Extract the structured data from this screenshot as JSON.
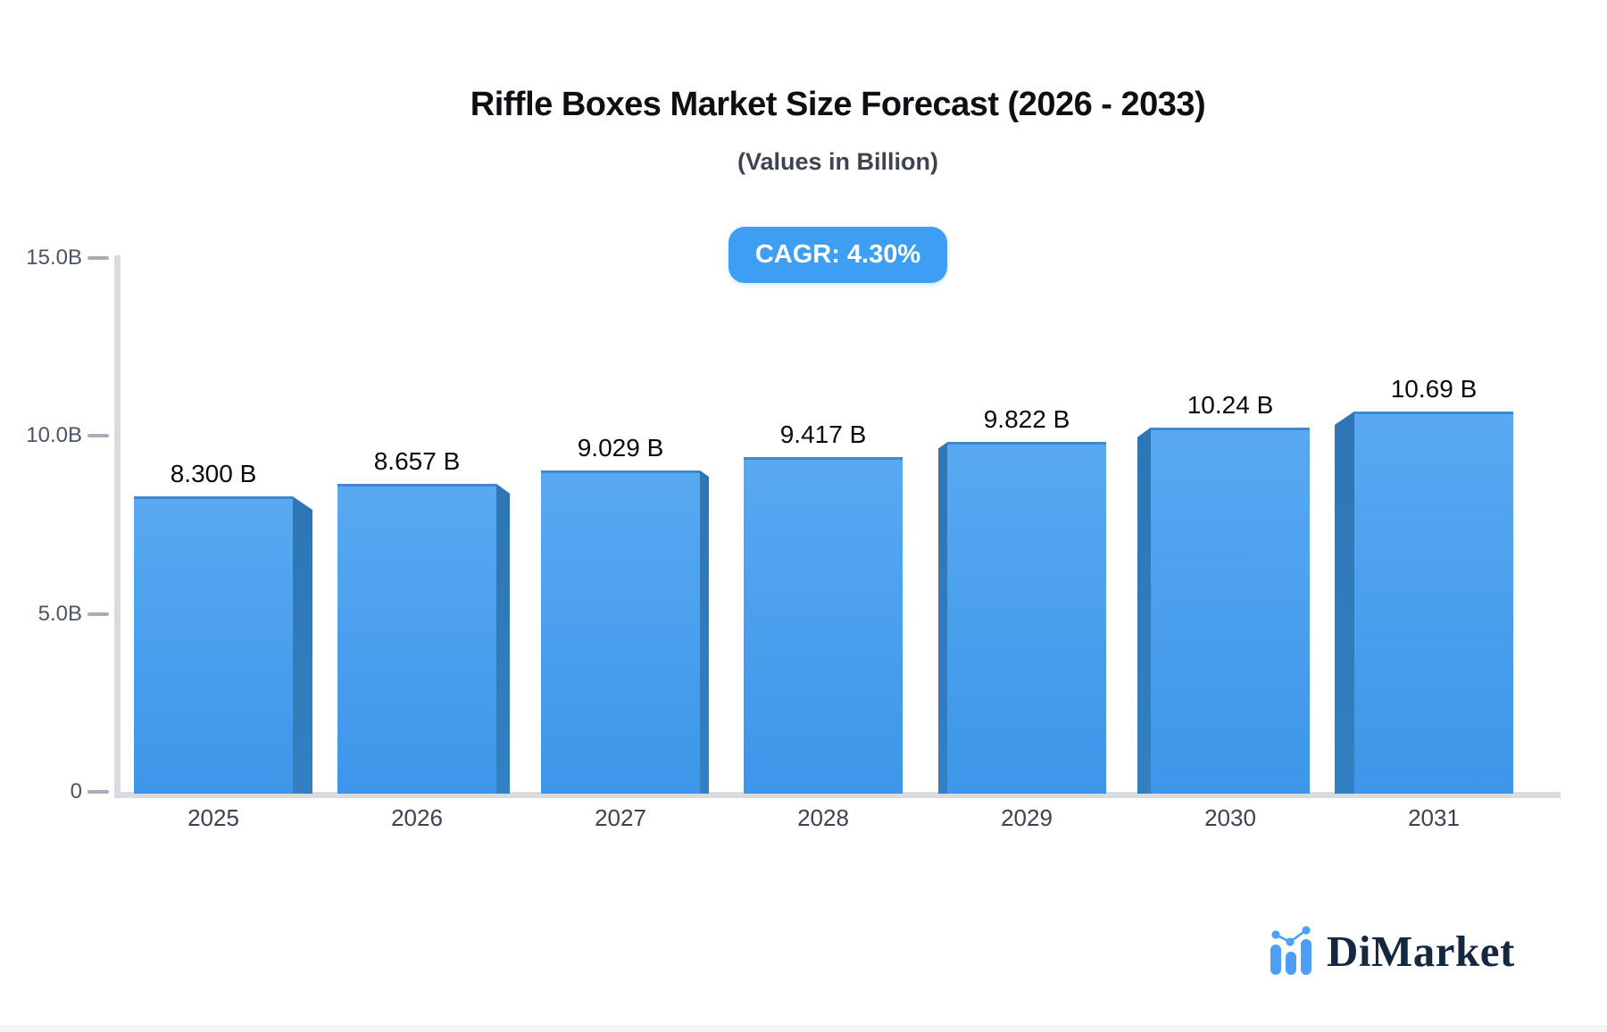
{
  "chart_data": {
    "type": "bar",
    "title": "Riffle Boxes Market Size Forecast (2026 - 2033)",
    "subtitle": "(Values in Billion)",
    "categories": [
      "2025",
      "2026",
      "2027",
      "2028",
      "2029",
      "2030",
      "2031"
    ],
    "values": [
      8.3,
      8.657,
      9.029,
      9.417,
      9.822,
      10.24,
      10.69
    ],
    "value_labels": [
      "8.300 B",
      "8.657 B",
      "9.029 B",
      "9.417 B",
      "9.822 B",
      "10.24 B",
      "10.69 B"
    ],
    "unit": "Billion",
    "xlabel": "",
    "ylabel": "",
    "ylim": [
      0,
      15
    ],
    "yticks": [
      {
        "label": "15.0B",
        "value": 15
      },
      {
        "label": "10.0B",
        "value": 10
      },
      {
        "label": "5.0B",
        "value": 5
      },
      {
        "label": "0",
        "value": 0
      }
    ],
    "grid": "off",
    "legend": "none",
    "annotations": [
      "CAGR: 4.30%"
    ]
  },
  "branding": {
    "logo_text": "DiMarket",
    "logo_icon": "mini-bar-line-chart-icon"
  },
  "colors": {
    "bar_front_top": "#58A9F1",
    "bar_front_bottom": "#3D96EA",
    "bar_side": "#2E76B5",
    "bar_top_edge": "#3F88CF",
    "badge_bg": "#3E9EF1",
    "badge_text": "#FFFFFF",
    "axis": "#D8DBE0",
    "tick": "#A7AEB9",
    "ytick_label": "#4B5563",
    "xtick_label": "#3B4252",
    "value_label": "#0A0A0C",
    "title": "#0D0F14",
    "subtitle": "#3D4450",
    "logo_navy": "#152741",
    "logo_blue": "#4D9FF2"
  }
}
